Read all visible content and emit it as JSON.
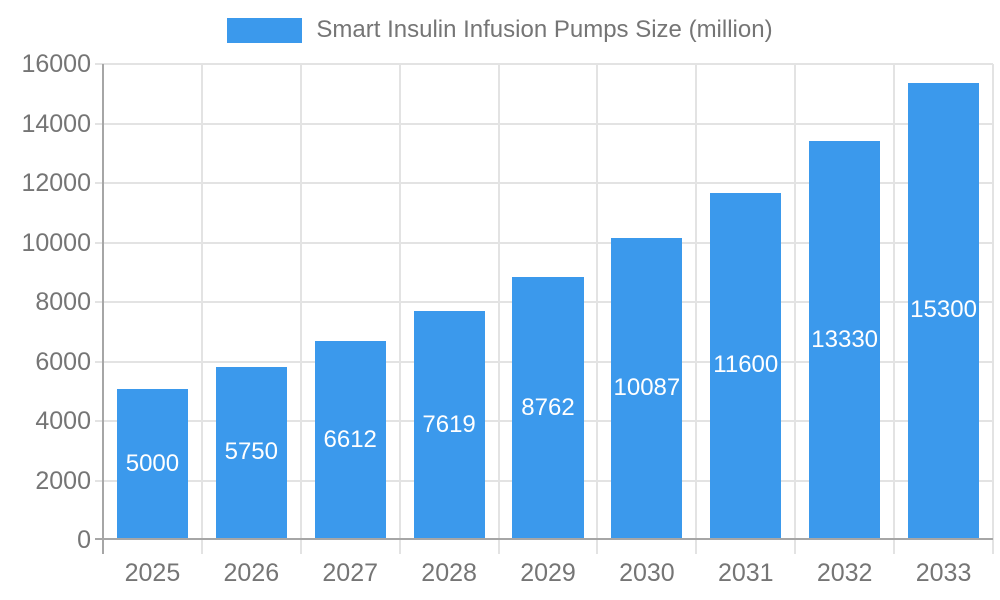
{
  "legend": {
    "label": "Smart Insulin Infusion Pumps Size (million)"
  },
  "chart_data": {
    "type": "bar",
    "title": "Smart Insulin Infusion Pumps Size (million)",
    "categories": [
      "2025",
      "2026",
      "2027",
      "2028",
      "2029",
      "2030",
      "2031",
      "2032",
      "2033"
    ],
    "values": [
      5000,
      5750,
      6612,
      7619,
      8762,
      10087,
      11600,
      13330,
      15300
    ],
    "series": [
      {
        "name": "Smart Insulin Infusion Pumps Size (million)",
        "values": [
          5000,
          5750,
          6612,
          7619,
          8762,
          10087,
          11600,
          13330,
          15300
        ]
      }
    ],
    "xlabel": "",
    "ylabel": "",
    "ylim": [
      0,
      16000
    ],
    "yticks": [
      0,
      2000,
      4000,
      6000,
      8000,
      10000,
      12000,
      14000,
      16000
    ],
    "grid": true,
    "legend_position": "top-center",
    "value_labels": "white text centered inside bars",
    "colors": {
      "bar": "#3b99ec",
      "grid": "#e3e3e3",
      "axis_line": "#a6a6a6",
      "axis_text": "#757575",
      "value_text": "#ffffff",
      "background": "#ffffff"
    }
  }
}
